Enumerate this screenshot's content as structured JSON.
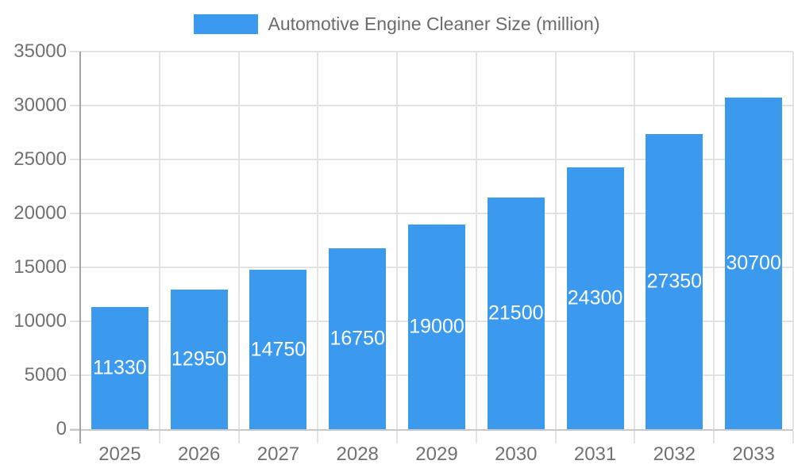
{
  "legend": {
    "label": "Automotive Engine Cleaner Size (million)"
  },
  "colors": {
    "background": "#ffffff",
    "bar": "#3b99ee",
    "grid": "#e3e3e3",
    "axis_y": "#a3a3a3",
    "axis_x": "#c9c9c9",
    "tick_label": "#717171",
    "legend_label": "#6b6b6b",
    "data_label": "#ffffff"
  },
  "chart_data": {
    "type": "bar",
    "title": "",
    "categories": [
      "2025",
      "2026",
      "2027",
      "2028",
      "2029",
      "2030",
      "2031",
      "2032",
      "2033"
    ],
    "series": [
      {
        "name": "Automotive Engine Cleaner Size (million)",
        "values": [
          11330,
          12950,
          14750,
          16750,
          19000,
          21500,
          24300,
          27350,
          30700
        ]
      }
    ],
    "xlabel": "",
    "ylabel": "",
    "ylim": [
      0,
      35000
    ],
    "ytick_step": 5000,
    "grid": true,
    "legend_position": "top",
    "data_labels": "inside-center"
  }
}
